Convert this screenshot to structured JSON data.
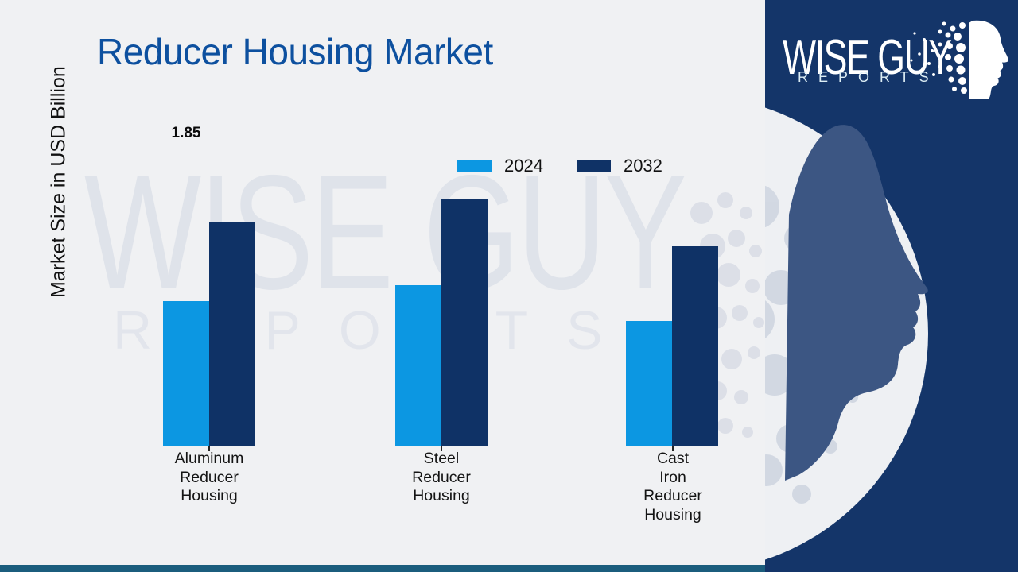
{
  "title": "Reducer Housing Market",
  "y_axis_label": "Market Size in USD Billion",
  "legend": {
    "items": [
      {
        "label": "2024",
        "color": "#0c97e2"
      },
      {
        "label": "2032",
        "color": "#0f3266"
      }
    ]
  },
  "value_label_aluminum_2024": "1.85",
  "categories_display": [
    "Aluminum\nReducer\nHousing",
    "Steel\nReducer\nHousing",
    "Cast\nIron\nReducer\nHousing"
  ],
  "watermark": {
    "line1": "WISE GUY",
    "line2": "REPORTS"
  },
  "brand": {
    "line1": "WISE GUY",
    "line2": "REPORTS"
  },
  "colors": {
    "background": "#f0f1f3",
    "title": "#0d509f",
    "bar_2024": "#0c97e2",
    "bar_2032": "#0f3266",
    "panel": "#143569",
    "bottom_bar": "#1b5d7d"
  },
  "chart_data": {
    "type": "bar",
    "title": "Reducer Housing Market",
    "ylabel": "Market Size in USD Billion",
    "categories": [
      "Aluminum Reducer Housing",
      "Steel Reducer Housing",
      "Cast Iron Reducer Housing"
    ],
    "series": [
      {
        "name": "2024",
        "color": "#0c97e2",
        "values": [
          1.85,
          2.05,
          1.6
        ]
      },
      {
        "name": "2032",
        "color": "#0f3266",
        "values": [
          2.85,
          3.15,
          2.55
        ]
      }
    ],
    "data_label_shown": {
      "series": "2024",
      "category": "Aluminum Reducer Housing",
      "value": "1.85"
    },
    "ylim": [
      0,
      3.5
    ],
    "grid": false,
    "legend_position": "top-center",
    "units": "USD Billion"
  }
}
